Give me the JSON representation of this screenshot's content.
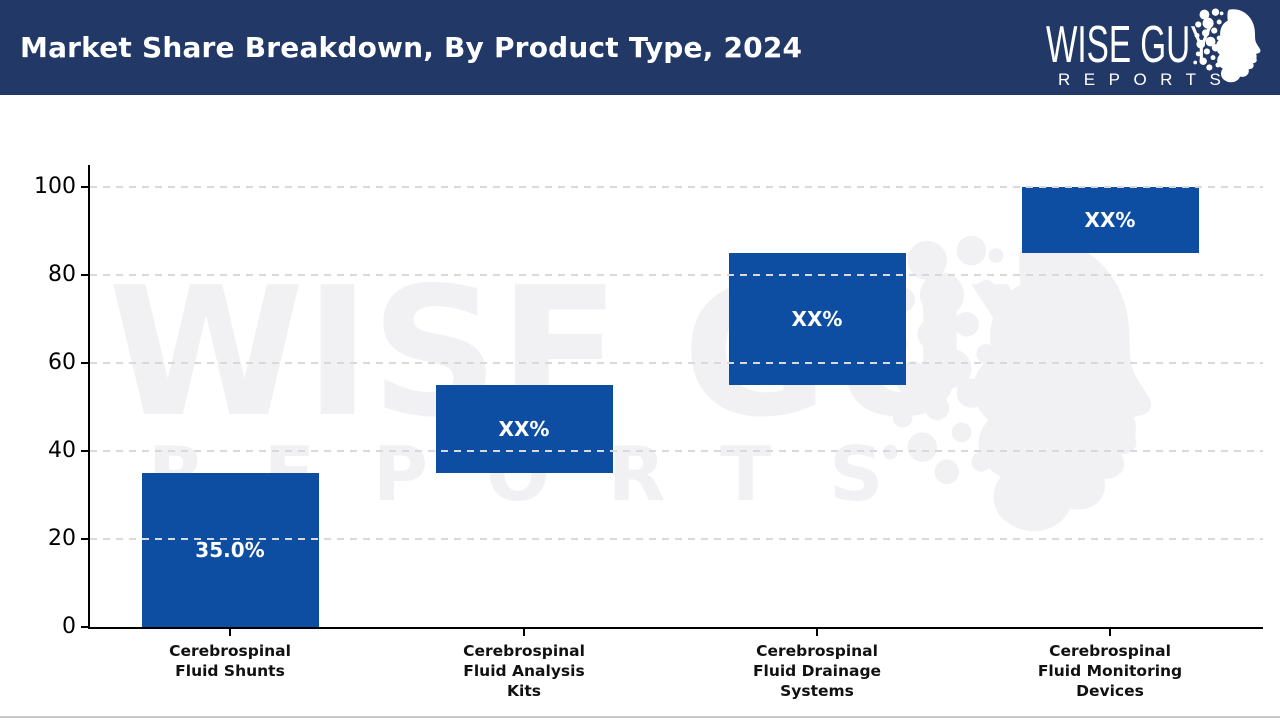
{
  "header": {
    "title": "Market Share Breakdown, By Product Type, 2024",
    "bg_color": "#223968",
    "logo": {
      "line1": "WISE GUY",
      "line2": "REPORTS"
    }
  },
  "watermark": {
    "line1": "WISE GUY",
    "line2": "REPORTS"
  },
  "chart_data": {
    "type": "bar",
    "variant": "waterfall",
    "title": "Market Share Breakdown, By Product Type, 2024",
    "categories": [
      "Cerebrospinal\nFluid Shunts",
      "Cerebrospinal\nFluid Analysis\nKits",
      "Cerebrospinal\nFluid Drainage\nSystems",
      "Cerebrospinal\nFluid Monitoring\nDevices"
    ],
    "bars": [
      {
        "start": 0,
        "end": 35,
        "value_label": "35.0%"
      },
      {
        "start": 35,
        "end": 55,
        "value_label": "XX%"
      },
      {
        "start": 55,
        "end": 85,
        "value_label": "XX%"
      },
      {
        "start": 85,
        "end": 100,
        "value_label": "XX%"
      }
    ],
    "xlabel": "",
    "ylabel": "",
    "yticks": [
      0,
      20,
      40,
      60,
      80,
      100
    ],
    "ylim": [
      0,
      105
    ],
    "grid": "horizontal-dashed",
    "legend": "none",
    "bar_color": "#0d4da2",
    "value_label_color": "#ffffff"
  }
}
